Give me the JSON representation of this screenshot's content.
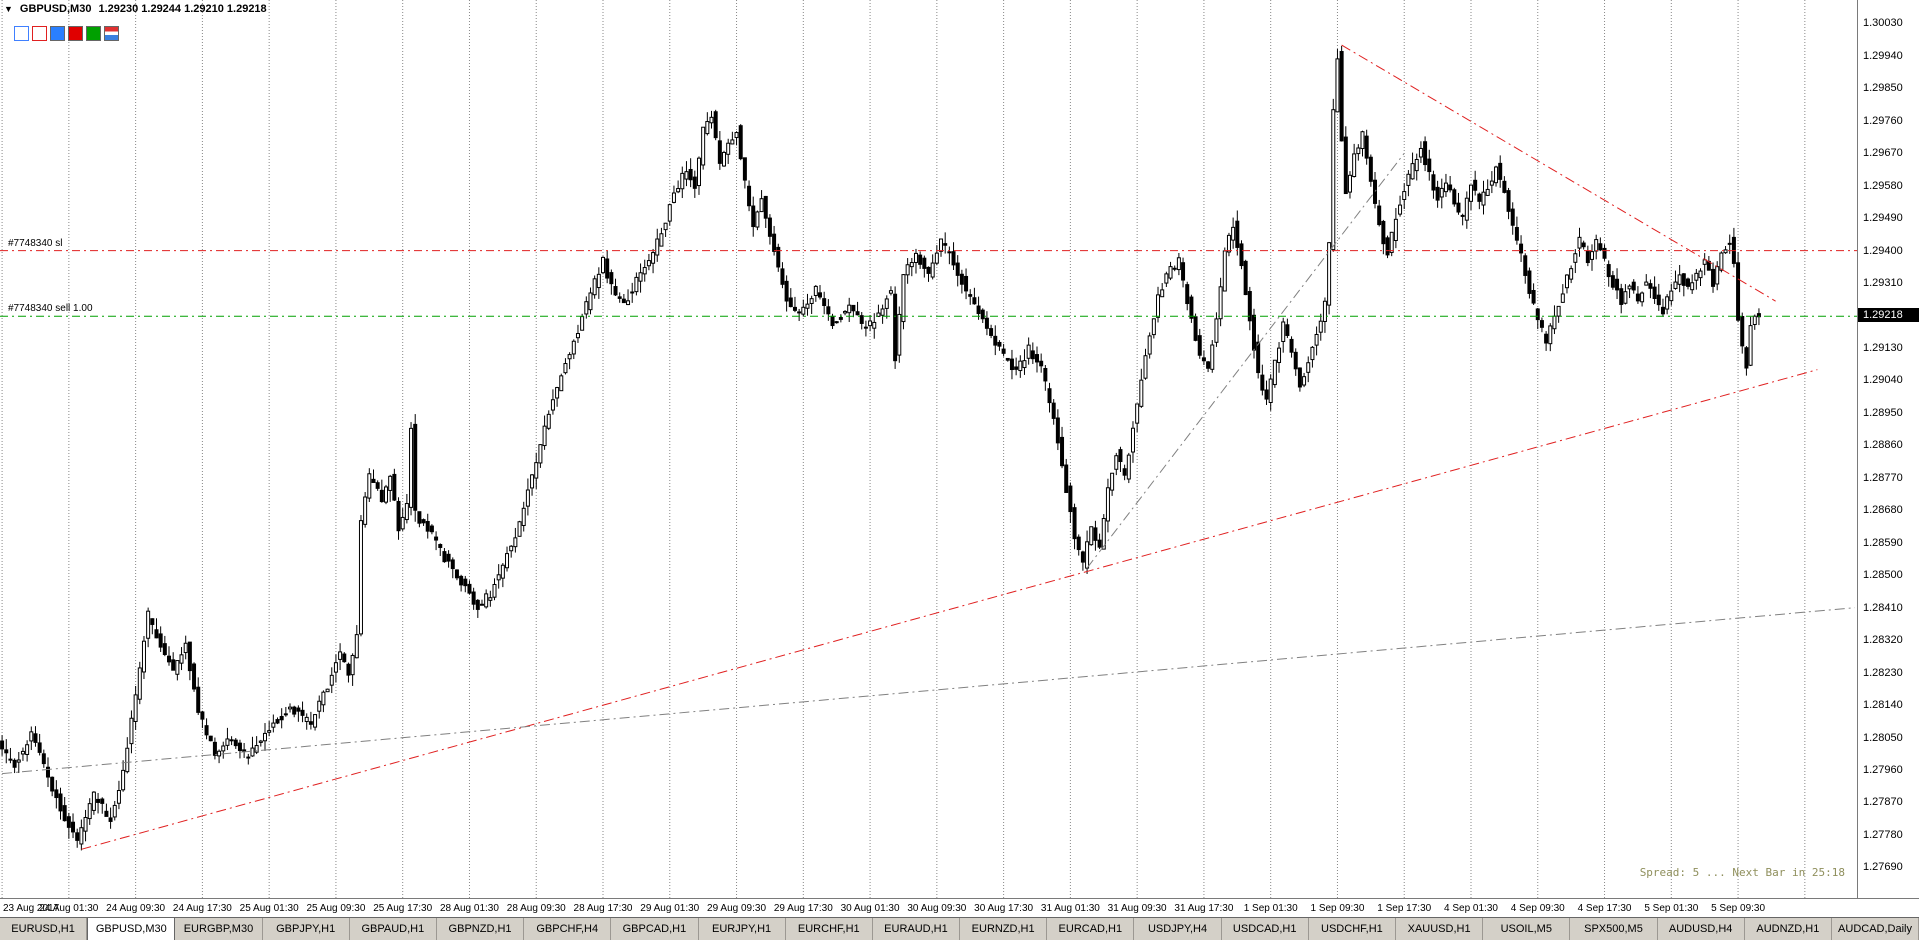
{
  "window": {
    "marker": "▼",
    "symbol": "GBPUSD,M30",
    "quotes": "1.29230 1.29244 1.29210 1.29218"
  },
  "toolbar": {
    "swatches": [
      {
        "name": "swatch-outline-blue",
        "type": "outline",
        "color": "#4080FF"
      },
      {
        "name": "swatch-outline-red",
        "type": "outline",
        "color": "#E02020"
      },
      {
        "name": "swatch-blue",
        "type": "fill",
        "color": "#2A7FFF"
      },
      {
        "name": "swatch-red",
        "type": "fill",
        "color": "#E00000"
      },
      {
        "name": "swatch-green",
        "type": "fill",
        "color": "#00A000"
      },
      {
        "name": "swatch-striped",
        "type": "stripes",
        "color": "#E00000"
      }
    ]
  },
  "order_lines": {
    "sl": {
      "label": "#7748340 sl",
      "price": 1.294,
      "color": "#E02020"
    },
    "sell": {
      "label": "#7748340 sell 1.00",
      "price": 1.29218,
      "color": "#00A000"
    }
  },
  "status": {
    "text": "Spread: 5 ... Next Bar in 25:18"
  },
  "price_axis": {
    "badge": "1.29218",
    "labels": [
      "1.30030",
      "1.29940",
      "1.29850",
      "1.29760",
      "1.29670",
      "1.29580",
      "1.29490",
      "1.29400",
      "1.29310",
      "1.29130",
      "1.29040",
      "1.28950",
      "1.28860",
      "1.28770",
      "1.28680",
      "1.28590",
      "1.28500",
      "1.28410",
      "1.28320",
      "1.28230",
      "1.28140",
      "1.28050",
      "1.27960",
      "1.27870",
      "1.27780",
      "1.27690"
    ]
  },
  "time_axis": {
    "labels": [
      "23 Aug 2017",
      "24 Aug 01:30",
      "24 Aug 09:30",
      "24 Aug 17:30",
      "25 Aug 01:30",
      "25 Aug 09:30",
      "25 Aug 17:30",
      "28 Aug 01:30",
      "28 Aug 09:30",
      "28 Aug 17:30",
      "29 Aug 01:30",
      "29 Aug 09:30",
      "29 Aug 17:30",
      "30 Aug 01:30",
      "30 Aug 09:30",
      "30 Aug 17:30",
      "31 Aug 01:30",
      "31 Aug 09:30",
      "31 Aug 17:30",
      "1 Sep 01:30",
      "1 Sep 09:30",
      "1 Sep 17:30",
      "4 Sep 01:30",
      "4 Sep 09:30",
      "4 Sep 17:30",
      "5 Sep 01:30",
      "5 Sep 09:30"
    ]
  },
  "tabs": {
    "active": "GBPUSD,M30",
    "items": [
      "EURUSD,H1",
      "GBPUSD,M30",
      "EURGBP,M30",
      "GBPJPY,H1",
      "GBPAUD,H1",
      "GBPNZD,H1",
      "GBPCHF,H4",
      "GBPCAD,H1",
      "EURJPY,H1",
      "EURCHF,H1",
      "EURAUD,H1",
      "EURNZD,H1",
      "EURCAD,H1",
      "USDJPY,H4",
      "USDCAD,H1",
      "USDCHF,H1",
      "XAUUSD,H1",
      "USOIL,M5",
      "SPX500,M5",
      "AUDUSD,H4",
      "AUDNZD,H1",
      "AUDCAD,Daily"
    ]
  },
  "chart_data": {
    "type": "candlestick-ohlc",
    "symbol": "GBPUSD",
    "timeframe": "M30",
    "bars_per_tick": 16,
    "visible_bars": 445,
    "price_top": 1.30095,
    "price_bottom": 1.27605,
    "grid": "vertical-dotted",
    "candle_up_fill": "#FFFFFF",
    "candle_down_fill": "#000000",
    "candle_outline": "#000000",
    "path_keypoints": [
      [
        0,
        1.2803
      ],
      [
        4,
        1.2797
      ],
      [
        8,
        1.2806
      ],
      [
        12,
        1.2794
      ],
      [
        16,
        1.2783
      ],
      [
        19,
        1.2776
      ],
      [
        23,
        1.2789
      ],
      [
        27,
        1.2782
      ],
      [
        30,
        1.2796
      ],
      [
        33,
        1.2816
      ],
      [
        36,
        1.2839
      ],
      [
        39,
        1.283
      ],
      [
        42,
        1.2823
      ],
      [
        45,
        1.2831
      ],
      [
        48,
        1.2812
      ],
      [
        52,
        1.2801
      ],
      [
        56,
        1.2805
      ],
      [
        60,
        1.2799
      ],
      [
        64,
        1.2807
      ],
      [
        70,
        1.2813
      ],
      [
        75,
        1.2809
      ],
      [
        79,
        1.2819
      ],
      [
        82,
        1.2829
      ],
      [
        84,
        1.2822
      ],
      [
        86,
        1.2834
      ],
      [
        87,
        1.2864
      ],
      [
        89,
        1.2877
      ],
      [
        92,
        1.2871
      ],
      [
        94,
        1.2878
      ],
      [
        96,
        1.2863
      ],
      [
        98,
        1.2869
      ],
      [
        99,
        1.2891
      ],
      [
        100,
        1.2867
      ],
      [
        103,
        1.2863
      ],
      [
        106,
        1.2857
      ],
      [
        109,
        1.2851
      ],
      [
        112,
        1.2847
      ],
      [
        115,
        1.2841
      ],
      [
        118,
        1.2845
      ],
      [
        121,
        1.2853
      ],
      [
        124,
        1.2861
      ],
      [
        127,
        1.2873
      ],
      [
        130,
        1.2886
      ],
      [
        133,
        1.2899
      ],
      [
        136,
        1.2909
      ],
      [
        139,
        1.2918
      ],
      [
        142,
        1.2928
      ],
      [
        145,
        1.2937
      ],
      [
        147,
        1.293
      ],
      [
        150,
        1.2925
      ],
      [
        153,
        1.2932
      ],
      [
        156,
        1.2937
      ],
      [
        159,
        1.2945
      ],
      [
        162,
        1.2956
      ],
      [
        165,
        1.2963
      ],
      [
        167,
        1.2957
      ],
      [
        169,
        1.2973
      ],
      [
        171,
        1.2978
      ],
      [
        173,
        1.2963
      ],
      [
        175,
        1.2969
      ],
      [
        177,
        1.2974
      ],
      [
        179,
        1.2959
      ],
      [
        181,
        1.2946
      ],
      [
        183,
        1.2954
      ],
      [
        185,
        1.2945
      ],
      [
        187,
        1.2935
      ],
      [
        189,
        1.2927
      ],
      [
        192,
        1.2922
      ],
      [
        196,
        1.2929
      ],
      [
        200,
        1.2919
      ],
      [
        204,
        1.2925
      ],
      [
        208,
        1.2918
      ],
      [
        211,
        1.2923
      ],
      [
        214,
        1.2929
      ],
      [
        215,
        1.291
      ],
      [
        217,
        1.2933
      ],
      [
        220,
        1.2939
      ],
      [
        223,
        1.2933
      ],
      [
        226,
        1.2942
      ],
      [
        229,
        1.2937
      ],
      [
        232,
        1.2929
      ],
      [
        236,
        1.2921
      ],
      [
        240,
        1.2913
      ],
      [
        244,
        1.2906
      ],
      [
        247,
        1.2913
      ],
      [
        250,
        1.2907
      ],
      [
        253,
        1.2894
      ],
      [
        256,
        1.2874
      ],
      [
        258,
        1.2861
      ],
      [
        260,
        1.2853
      ],
      [
        262,
        1.2864
      ],
      [
        264,
        1.2857
      ],
      [
        266,
        1.2873
      ],
      [
        268,
        1.2884
      ],
      [
        270,
        1.2877
      ],
      [
        272,
        1.2891
      ],
      [
        274,
        1.2904
      ],
      [
        276,
        1.2917
      ],
      [
        278,
        1.2927
      ],
      [
        280,
        1.2933
      ],
      [
        283,
        1.2937
      ],
      [
        286,
        1.2921
      ],
      [
        288,
        1.2911
      ],
      [
        290,
        1.2907
      ],
      [
        292,
        1.2921
      ],
      [
        294,
        1.2939
      ],
      [
        296,
        1.2947
      ],
      [
        298,
        1.2937
      ],
      [
        300,
        1.2921
      ],
      [
        302,
        1.2906
      ],
      [
        304,
        1.2899
      ],
      [
        306,
        1.2909
      ],
      [
        308,
        1.2919
      ],
      [
        310,
        1.2913
      ],
      [
        312,
        1.2903
      ],
      [
        314,
        1.2909
      ],
      [
        316,
        1.2917
      ],
      [
        318,
        1.2925
      ],
      [
        319,
        1.2941
      ],
      [
        320,
        1.2979
      ],
      [
        321,
        1.2994
      ],
      [
        322,
        1.2971
      ],
      [
        323,
        1.2957
      ],
      [
        325,
        1.2966
      ],
      [
        327,
        1.2973
      ],
      [
        329,
        1.2959
      ],
      [
        331,
        1.2947
      ],
      [
        333,
        1.2939
      ],
      [
        335,
        1.2949
      ],
      [
        337,
        1.2957
      ],
      [
        339,
        1.2963
      ],
      [
        341,
        1.2969
      ],
      [
        343,
        1.2961
      ],
      [
        345,
        1.2955
      ],
      [
        347,
        1.2959
      ],
      [
        349,
        1.2953
      ],
      [
        351,
        1.2949
      ],
      [
        353,
        1.2959
      ],
      [
        355,
        1.2953
      ],
      [
        357,
        1.2957
      ],
      [
        359,
        1.2963
      ],
      [
        361,
        1.2956
      ],
      [
        363,
        1.2947
      ],
      [
        365,
        1.2939
      ],
      [
        367,
        1.2929
      ],
      [
        369,
        1.2921
      ],
      [
        371,
        1.2914
      ],
      [
        373,
        1.2922
      ],
      [
        375,
        1.2929
      ],
      [
        377,
        1.2936
      ],
      [
        379,
        1.2943
      ],
      [
        381,
        1.2937
      ],
      [
        383,
        1.2943
      ],
      [
        385,
        1.2937
      ],
      [
        387,
        1.2931
      ],
      [
        389,
        1.2926
      ],
      [
        391,
        1.2931
      ],
      [
        393,
        1.2927
      ],
      [
        395,
        1.2932
      ],
      [
        397,
        1.2927
      ],
      [
        399,
        1.2923
      ],
      [
        401,
        1.2929
      ],
      [
        403,
        1.2933
      ],
      [
        405,
        1.2929
      ],
      [
        407,
        1.2933
      ],
      [
        409,
        1.2938
      ],
      [
        411,
        1.2931
      ],
      [
        413,
        1.2939
      ],
      [
        415,
        1.2943
      ],
      [
        416,
        1.2936
      ],
      [
        417,
        1.2921
      ],
      [
        418,
        1.2913
      ],
      [
        419,
        1.2908
      ],
      [
        420,
        1.2919
      ],
      [
        421,
        1.2922
      ]
    ],
    "trendlines": [
      {
        "name": "ascending-support-red",
        "color": "#E02020",
        "style": "dashdot",
        "from": [
          19,
          1.2774
        ],
        "to": [
          435,
          1.2907
        ]
      },
      {
        "name": "descending-resistance-red",
        "color": "#E02020",
        "style": "dashdot",
        "from": [
          321,
          1.2997
        ],
        "to": [
          425,
          1.2926
        ]
      },
      {
        "name": "ascending-gray-shallow",
        "color": "#808080",
        "style": "dashdot",
        "from": [
          0,
          1.2795
        ],
        "to": [
          444,
          1.2841
        ]
      },
      {
        "name": "ascending-gray-steep",
        "color": "#808080",
        "style": "dashdot",
        "from": [
          260,
          1.2852
        ],
        "to": [
          336,
          1.2967
        ]
      }
    ]
  }
}
